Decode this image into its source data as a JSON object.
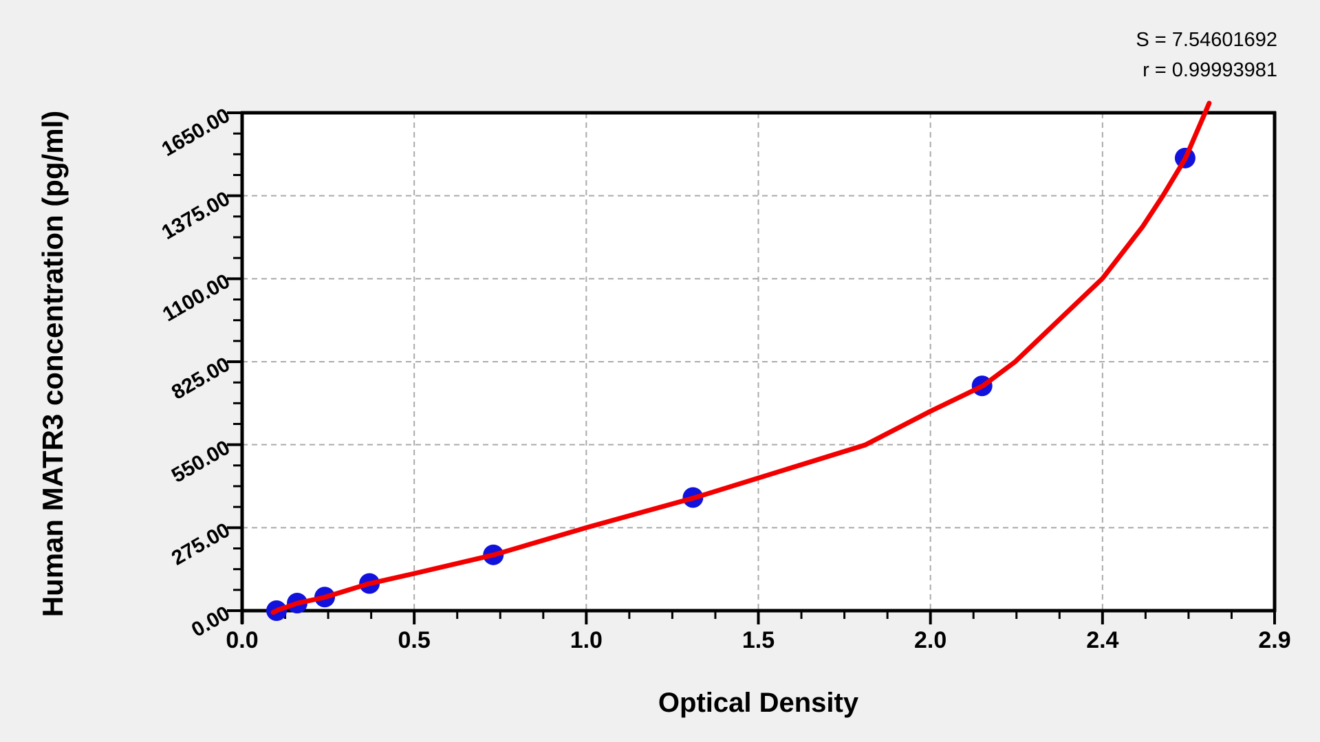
{
  "figure": {
    "stats": {
      "s_line": "S = 7.54601692",
      "r_line": "r = 0.99993981"
    },
    "x_axis": {
      "title": "Optical Density",
      "tick_labels": [
        "0.0",
        "0.5",
        "1.0",
        "1.5",
        "2.0",
        "2.4",
        "2.9"
      ],
      "tick_values": [
        0.0,
        0.5,
        1.0,
        1.5,
        2.0,
        2.4,
        2.9
      ],
      "minor_divisions": 4
    },
    "y_axis": {
      "title": "Human MATR3 concentration (pg/ml)",
      "tick_labels": [
        "0.00",
        "275.00",
        "550.00",
        "825.00",
        "1100.00",
        "1375.00",
        "1650.00"
      ],
      "tick_values": [
        0,
        275,
        550,
        825,
        1100,
        1375,
        1650
      ],
      "minor_divisions": 4
    },
    "colors": {
      "background": "#f0f0f0",
      "plot_background": "#ffffff",
      "curve": "#f20000",
      "point": "#1212dd",
      "grid": "#aaaaaa",
      "axis": "#000000",
      "text": "#000000"
    }
  },
  "chart_data": {
    "type": "scatter",
    "title": "",
    "xlabel": "Optical Density",
    "ylabel": "Human MATR3 concentration (pg/ml)",
    "x_ticks": [
      0.0,
      0.5,
      1.0,
      1.5,
      2.0,
      2.4,
      2.9
    ],
    "y_ticks": [
      0,
      275,
      550,
      825,
      1100,
      1375,
      1650
    ],
    "ylim": [
      0,
      1650
    ],
    "grid": "dashed-on-major-ticks",
    "legend": "none",
    "stats": {
      "S": 7.54601692,
      "r": 0.99993981
    },
    "points": {
      "name": "standard-points",
      "od": [
        0.1,
        0.16,
        0.24,
        0.37,
        0.73,
        1.31,
        2.12,
        2.64
      ],
      "concentration": [
        0,
        25,
        45,
        90,
        185,
        375,
        745,
        1500
      ]
    },
    "fit_curve": {
      "name": "regression-curve",
      "od": [
        0.09,
        0.104,
        0.162,
        0.236,
        0.368,
        0.5,
        0.732,
        1.0,
        1.314,
        1.6,
        1.81,
        2.0,
        2.122,
        2.197,
        2.4,
        2.516,
        2.576,
        2.64,
        2.7,
        2.71
      ],
      "concentration": [
        -6,
        2,
        25,
        43,
        89,
        123,
        185,
        275,
        374,
        475,
        549,
        661,
        745,
        825,
        1101,
        1272,
        1376,
        1497,
        1655,
        1682
      ]
    }
  }
}
